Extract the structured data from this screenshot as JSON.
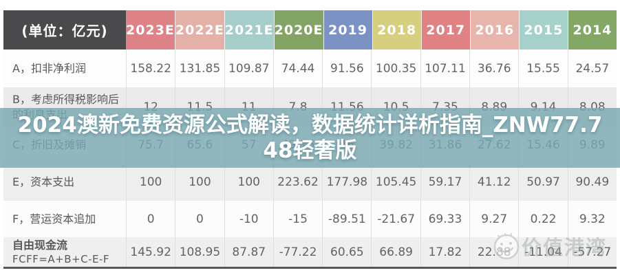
{
  "overlay": {
    "line1": "2024澳新免费资源公式解读，数据统计详析指南_ZNW77.7",
    "line2": "48轻奢版",
    "full_title": "2024澳新免费资源公式解读，数据统计详析指南_ZNW77.748轻奢版",
    "background": "#79a7b1"
  },
  "watermark": {
    "text": "价值港湾",
    "icon": "smiley-face-icon"
  },
  "table": {
    "unit_header": "(单位：亿元)",
    "header_bg": "#4a4a4c",
    "columns": [
      {
        "label": "2023E",
        "color": "#dd8388"
      },
      {
        "label": "2022E",
        "color": "#e3b1a8"
      },
      {
        "label": "2021E",
        "color": "#a5cdc9"
      },
      {
        "label": "2020E",
        "color": "#83a464"
      },
      {
        "label": "2019",
        "color": "#7c92c5"
      },
      {
        "label": "2018",
        "color": "#d6cf7f"
      },
      {
        "label": "2017",
        "color": "#e08184"
      },
      {
        "label": "2016",
        "color": "#e8b5ad"
      },
      {
        "label": "2015",
        "color": "#a6d1cb"
      },
      {
        "label": "2014",
        "color": "#85a765"
      }
    ],
    "rows": [
      {
        "label": "A，扣非净利润",
        "values": [
          "158.22",
          "131.85",
          "109.87",
          "74.44",
          "91.56",
          "100.35",
          "107.11",
          "36.76",
          "15.55",
          "24.57"
        ]
      },
      {
        "label": "B，考虑所得税影响后的利息支出",
        "values": [
          "12",
          "11.5",
          "11",
          "7.8",
          "11.56",
          "10.5",
          "7.35",
          "8.89",
          "9.14",
          "8.08"
        ]
      },
      {
        "label": "C，折旧及摊销",
        "values": [
          "75.7",
          "65.6",
          "57",
          "49.16",
          "46",
          "39.82",
          "31.86",
          "27.62",
          "15.46",
          "9.89"
        ]
      },
      {
        "label": "E，资本支出",
        "values": [
          "100",
          "100",
          "100",
          "223.62",
          "177.98",
          "105.45",
          "59.17",
          "41.12",
          "50.97",
          "90.49"
        ]
      },
      {
        "label": "F，营运资本追加",
        "values": [
          "0",
          "0",
          "-10",
          "-15",
          "-89.51",
          "-21.67",
          "69.33",
          "9.27",
          "0.22",
          "9.32"
        ]
      },
      {
        "label": "自由现金流",
        "label2": "FCFF=A+B+C-E-F",
        "values": [
          "145.92",
          "108.95",
          "87.87",
          "-77.22",
          "60.65",
          "66.89",
          "17.82",
          "22.88",
          "-11.04",
          "-57.27"
        ]
      }
    ]
  },
  "chart_data": {
    "type": "table",
    "unit": "亿元",
    "categories": [
      "2023E",
      "2022E",
      "2021E",
      "2020E",
      "2019",
      "2018",
      "2017",
      "2016",
      "2015",
      "2014"
    ],
    "series": [
      {
        "name": "A，扣非净利润",
        "values": [
          158.22,
          131.85,
          109.87,
          74.44,
          91.56,
          100.35,
          107.11,
          36.76,
          15.55,
          24.57
        ]
      },
      {
        "name": "B，考虑所得税影响后的利息支出",
        "values": [
          12,
          11.5,
          11,
          7.8,
          11.56,
          10.5,
          7.35,
          8.89,
          9.14,
          8.08
        ]
      },
      {
        "name": "C，折旧及摊销",
        "values": [
          75.7,
          65.6,
          57,
          49.16,
          46,
          39.82,
          31.86,
          27.62,
          15.46,
          9.89
        ]
      },
      {
        "name": "E，资本支出",
        "values": [
          100,
          100,
          100,
          223.62,
          177.98,
          105.45,
          59.17,
          41.12,
          50.97,
          90.49
        ]
      },
      {
        "name": "F，营运资本追加",
        "values": [
          0,
          0,
          -10,
          -15,
          -89.51,
          -21.67,
          69.33,
          9.27,
          0.22,
          9.32
        ]
      },
      {
        "name": "自由现金流 FCFF=A+B+C-E-F",
        "values": [
          145.92,
          108.95,
          87.87,
          -77.22,
          60.65,
          66.89,
          17.82,
          22.88,
          -11.04,
          -57.27
        ]
      }
    ]
  }
}
